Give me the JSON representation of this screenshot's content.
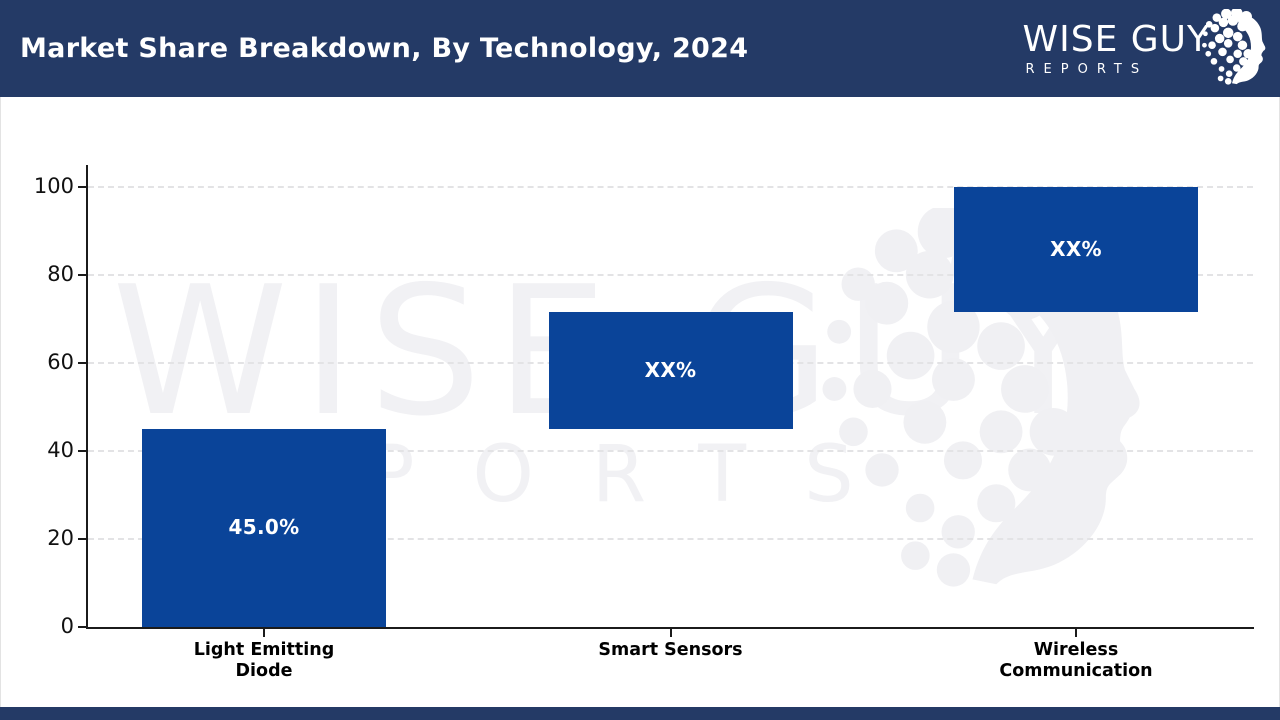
{
  "header": {
    "title": "Market Share Breakdown, By Technology, 2024",
    "bg_color": "#243a66",
    "logo": {
      "line1": "WISE GUY",
      "line2": "REPORTS"
    }
  },
  "watermark": {
    "line1": "WISE GUY",
    "line2": "REPORTS"
  },
  "chart_data": {
    "type": "bar",
    "subtype": "waterfall",
    "title": "Market Share Breakdown, By Technology, 2024",
    "categories": [
      [
        "Light Emitting",
        "Diode"
      ],
      [
        "Smart Sensors"
      ],
      [
        "Wireless",
        "Communication"
      ]
    ],
    "segments": [
      {
        "start": 0,
        "end": 45,
        "label": "45.0%"
      },
      {
        "start": 45,
        "end": 71.5,
        "label": "XX%"
      },
      {
        "start": 71.5,
        "end": 100,
        "label": "XX%"
      }
    ],
    "ylim": [
      0,
      100
    ],
    "yticks": [
      0,
      20,
      40,
      60,
      80,
      100
    ],
    "bar_color": "#0a4499",
    "bar_label_color": "#ffffff",
    "grid": {
      "show": true,
      "style": "dashed",
      "color": "#e3e3e5",
      "axis": "y"
    },
    "legend": null
  },
  "footer": {
    "bg_color": "#243a66"
  }
}
